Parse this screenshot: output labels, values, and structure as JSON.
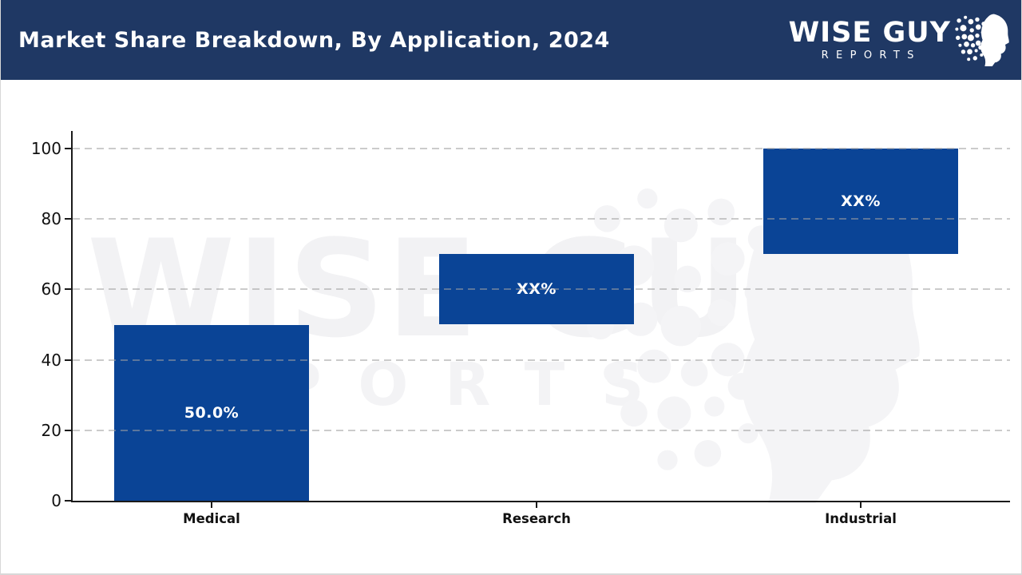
{
  "header": {
    "title": "Market Share Breakdown, By Application, 2024",
    "brand": {
      "line1": "WISE GUY",
      "line2": "REPORTS"
    }
  },
  "watermark": {
    "line1": "WISE GUY",
    "line2": "REPORTS"
  },
  "chart_data": {
    "type": "bar",
    "subtype": "floating-waterfall",
    "title": "Market Share Breakdown, By Application, 2024",
    "categories": [
      "Medical",
      "Research",
      "Industrial"
    ],
    "bars": [
      {
        "category": "Medical",
        "start": 0,
        "end": 50,
        "label": "50.0%"
      },
      {
        "category": "Research",
        "start": 50,
        "end": 70,
        "label": "XX%"
      },
      {
        "category": "Industrial",
        "start": 70,
        "end": 100,
        "label": "XX%"
      }
    ],
    "xlabel": "",
    "ylabel": "",
    "ylim": [
      0,
      105
    ],
    "yticks": [
      0,
      20,
      40,
      60,
      80,
      100
    ],
    "grid": "dashed-horizontal",
    "legend": "none",
    "bar_color": "#0a4496",
    "bar_label_color": "#ffffff"
  },
  "colors": {
    "header_bg": "#1f3864",
    "bar": "#0a4496",
    "grid": "#d4d4d4",
    "axis": "#1a1a1a",
    "watermark": "#f2f2f4"
  }
}
